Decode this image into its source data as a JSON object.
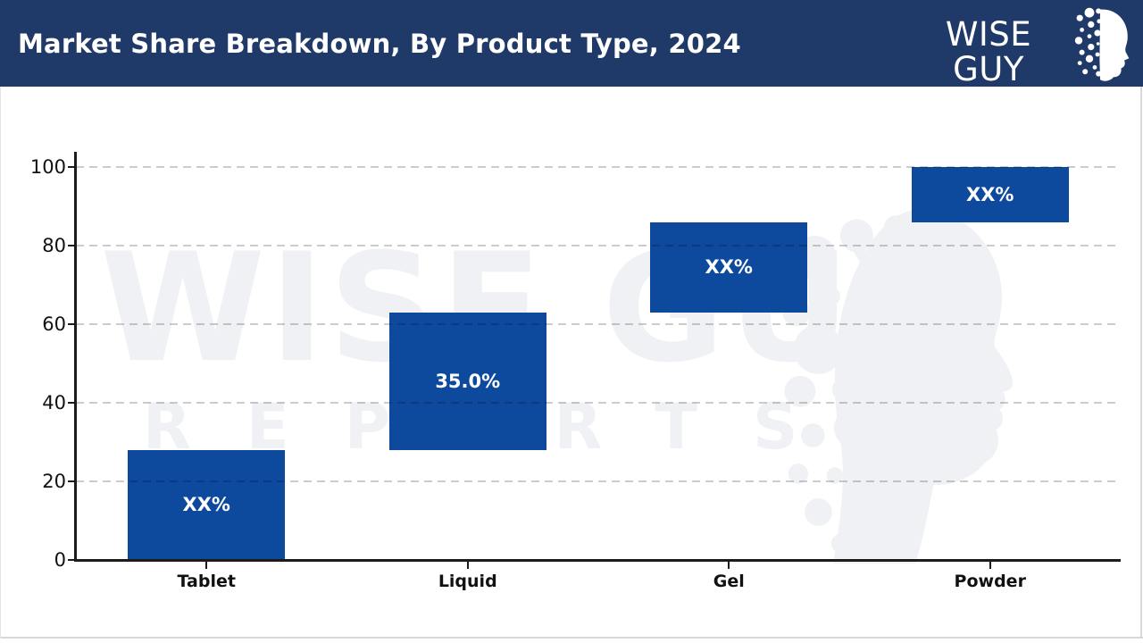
{
  "header": {
    "title": "Market Share Breakdown, By Product Type, 2024",
    "logo": {
      "primary": "WISE GUY",
      "secondary": "REPORTS"
    }
  },
  "watermark": {
    "line1": "WISE GUY",
    "line2": "REPORTS"
  },
  "colors": {
    "header_bg": "#1f3a68",
    "bar_fill": "#0d4a9e",
    "bar_label": "#ffffff",
    "gridline": "#cccccc",
    "axis": "#1c1c1c",
    "watermark": "#f0f1f4"
  },
  "chart_data": {
    "type": "bar",
    "subtype": "waterfall-floating-bars",
    "title": "Market Share Breakdown, By Product Type, 2024",
    "categories": [
      "Tablet",
      "Liquid",
      "Gel",
      "Powder"
    ],
    "segments": [
      {
        "category": "Tablet",
        "start": 0,
        "end": 28,
        "value_label": "XX%"
      },
      {
        "category": "Liquid",
        "start": 28,
        "end": 63,
        "value_label": "35.0%"
      },
      {
        "category": "Gel",
        "start": 63,
        "end": 86,
        "value_label": "XX%"
      },
      {
        "category": "Powder",
        "start": 86,
        "end": 100,
        "value_label": "XX%"
      }
    ],
    "xlabel": "",
    "ylabel": "",
    "ylim": [
      0,
      100
    ],
    "yticks": [
      0,
      20,
      40,
      60,
      80,
      100
    ],
    "grid": "horizontal dashed",
    "legend": "none"
  }
}
